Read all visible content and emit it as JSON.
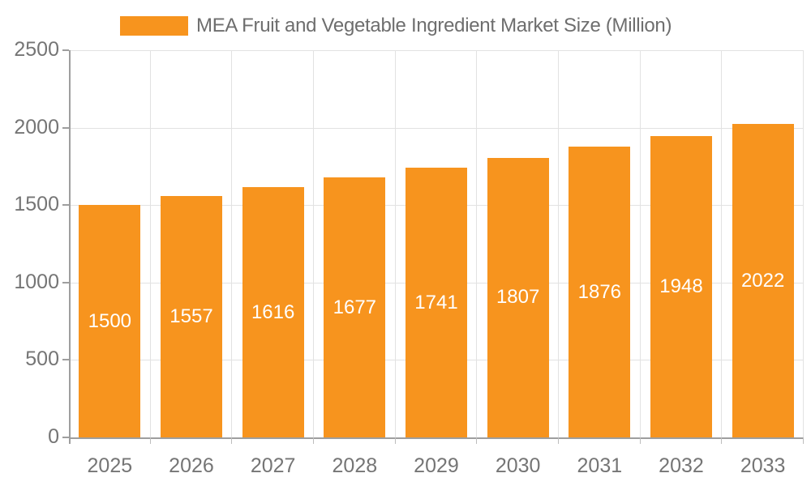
{
  "legend": {
    "label": "MEA Fruit and Vegetable Ingredient Market Size (Million)"
  },
  "colors": {
    "bar": "#F7941E",
    "grid": "#E2E2E2",
    "axis": "#9E9E9E",
    "axis_text": "#757575",
    "legend_text": "#6E6E6E",
    "bar_label": "#FFFFFF"
  },
  "chart_data": {
    "type": "bar",
    "title": "MEA Fruit and Vegetable Ingredient Market Size (Million)",
    "categories": [
      "2025",
      "2026",
      "2027",
      "2028",
      "2029",
      "2030",
      "2031",
      "2032",
      "2033"
    ],
    "values": [
      1500,
      1557,
      1616,
      1677,
      1741,
      1807,
      1876,
      1948,
      2022
    ],
    "xlabel": "",
    "ylabel": "",
    "ylim": [
      0,
      2500
    ],
    "yticks": [
      0,
      500,
      1000,
      1500,
      2000,
      2500
    ],
    "grid": true,
    "legend_position": "top",
    "bar_value_labels": "inside-center"
  }
}
